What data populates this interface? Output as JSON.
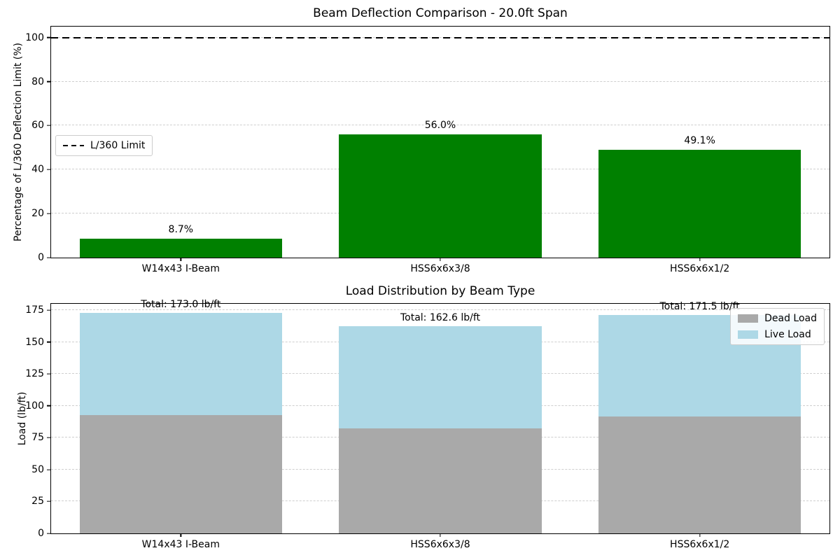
{
  "figure": {
    "background": "#ffffff"
  },
  "chart_data": [
    {
      "type": "bar",
      "title": "Beam Deflection Comparison - 20.0ft Span",
      "ylabel": "Percentage of L/360 Deflection Limit (%)",
      "xlabel": "",
      "categories": [
        "W14x43 I-Beam",
        "HSS6x6x3/8",
        "HSS6x6x1/2"
      ],
      "values": [
        8.7,
        56.0,
        49.1
      ],
      "bar_labels": [
        "8.7%",
        "56.0%",
        "49.1%"
      ],
      "bar_color": "#008000",
      "yticks": [
        0,
        20,
        40,
        60,
        80,
        100
      ],
      "ylim": [
        0,
        105
      ],
      "grid": "y-dashed",
      "reference_line": {
        "value": 100,
        "color": "#000000",
        "style": "dashed",
        "label": "L/360 Limit"
      },
      "legend": {
        "position": "center-left",
        "entries": [
          {
            "label": "L/360 Limit",
            "swatch": "dashed-line",
            "color": "#000000"
          }
        ]
      }
    },
    {
      "type": "stacked-bar",
      "title": "Load Distribution by Beam Type",
      "ylabel": "Load (lb/ft)",
      "xlabel": "",
      "categories": [
        "W14x43 I-Beam",
        "HSS6x6x3/8",
        "HSS6x6x1/2"
      ],
      "series": [
        {
          "name": "Dead Load",
          "color": "#a9a9a9",
          "values": [
            93.0,
            82.6,
            91.5
          ]
        },
        {
          "name": "Live Load",
          "color": "#add8e6",
          "values": [
            80.0,
            80.0,
            80.0
          ]
        }
      ],
      "totals": [
        173.0,
        162.6,
        171.5
      ],
      "total_labels": [
        "Total: 173.0 lb/ft",
        "Total: 162.6 lb/ft",
        "Total: 171.5 lb/ft"
      ],
      "yticks": [
        0,
        25,
        50,
        75,
        100,
        125,
        150,
        175
      ],
      "ylim": [
        0,
        180
      ],
      "grid": "y-dashed",
      "legend": {
        "position": "upper-right",
        "entries": [
          {
            "label": "Dead Load",
            "swatch": "patch",
            "color": "#a9a9a9"
          },
          {
            "label": "Live Load",
            "swatch": "patch",
            "color": "#add8e6"
          }
        ]
      }
    }
  ]
}
